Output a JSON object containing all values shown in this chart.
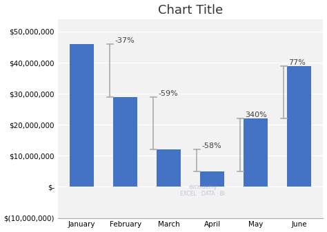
{
  "title": "Chart Title",
  "categories": [
    "January",
    "February",
    "March",
    "April",
    "May",
    "June"
  ],
  "values": [
    46000000,
    29000000,
    12000000,
    5000000,
    22000000,
    39000000
  ],
  "bar_color": "#4472C4",
  "pct_labels": [
    null,
    "-37%",
    "-59%",
    "-58%",
    "340%",
    "77%"
  ],
  "ylim": [
    -10000000,
    54000000
  ],
  "yticks": [
    -10000000,
    0,
    10000000,
    20000000,
    30000000,
    40000000,
    50000000
  ],
  "background_color": "#FFFFFF",
  "title_fontsize": 13,
  "tick_fontsize": 7.5,
  "label_fontsize": 8,
  "error_bar_color": "#AAAAAA",
  "chart_area_bg": "#F2F2F2"
}
